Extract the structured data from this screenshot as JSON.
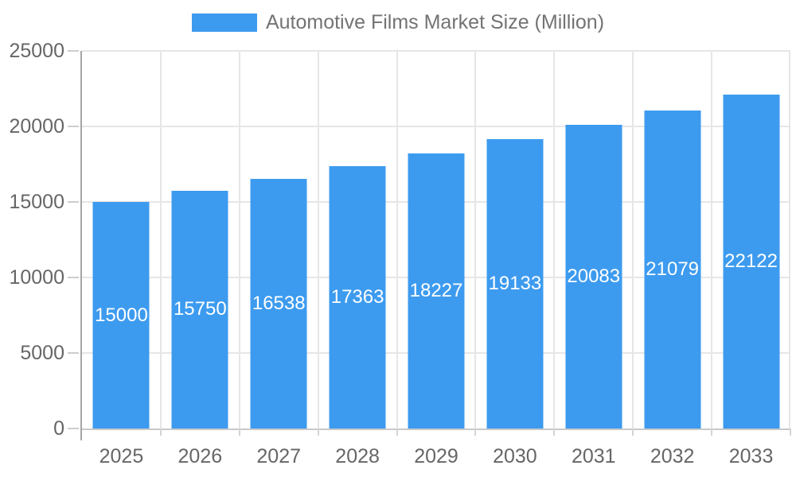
{
  "chart_data": {
    "type": "bar",
    "title": "",
    "legend": "Automotive Films Market Size (Million)",
    "legend_position": "top",
    "categories": [
      "2025",
      "2026",
      "2027",
      "2028",
      "2029",
      "2030",
      "2031",
      "2032",
      "2033"
    ],
    "values": [
      15000,
      15750,
      16538,
      17363,
      18227,
      19133,
      20083,
      21079,
      22122
    ],
    "xlabel": "",
    "ylabel": "",
    "ylim": [
      0,
      25000
    ],
    "yticks": [
      0,
      5000,
      10000,
      15000,
      20000,
      25000
    ],
    "grid": true,
    "bar_labels_inside": true
  },
  "colors": {
    "bar": "#3d9bef",
    "bar_label": "#ffffff",
    "axis_text": "#666666",
    "legend_text": "#737373",
    "gridline": "#e6e6e6",
    "y_axis_line": "#a5a5a5",
    "x_axis_line": "#c9c9c9",
    "tick": "#cdcdcd",
    "background": "#ffffff"
  }
}
